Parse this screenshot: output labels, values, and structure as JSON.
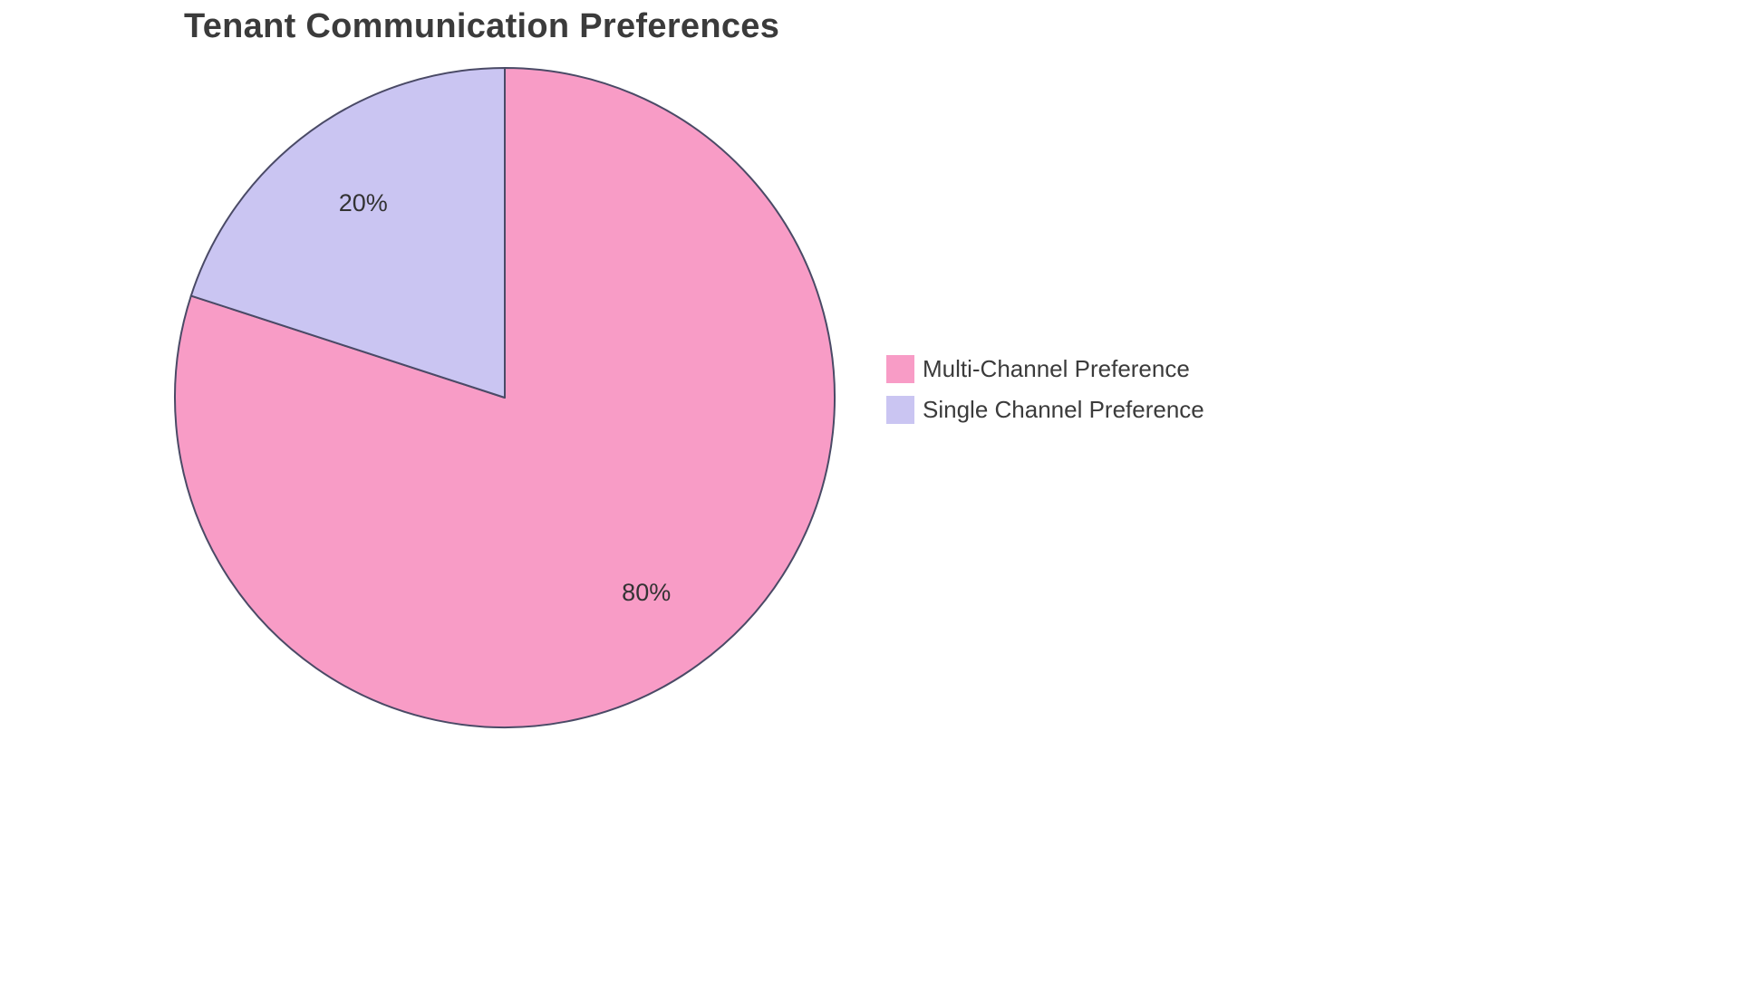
{
  "chart_data": {
    "type": "pie",
    "title": "Tenant Communication Preferences",
    "legend_position": "right",
    "start_angle": "top",
    "direction": "clockwise",
    "stroke_color": "#4a4a66",
    "stroke_width": 2,
    "label_color": "#333333",
    "title_color": "#3b3b3b",
    "slices": [
      {
        "label": "Multi-Channel Preference",
        "value": 80,
        "pct_label": "80%",
        "color": "#F89CC6"
      },
      {
        "label": "Single Channel Preference",
        "value": 20,
        "pct_label": "20%",
        "color": "#CAC5F2"
      }
    ]
  }
}
